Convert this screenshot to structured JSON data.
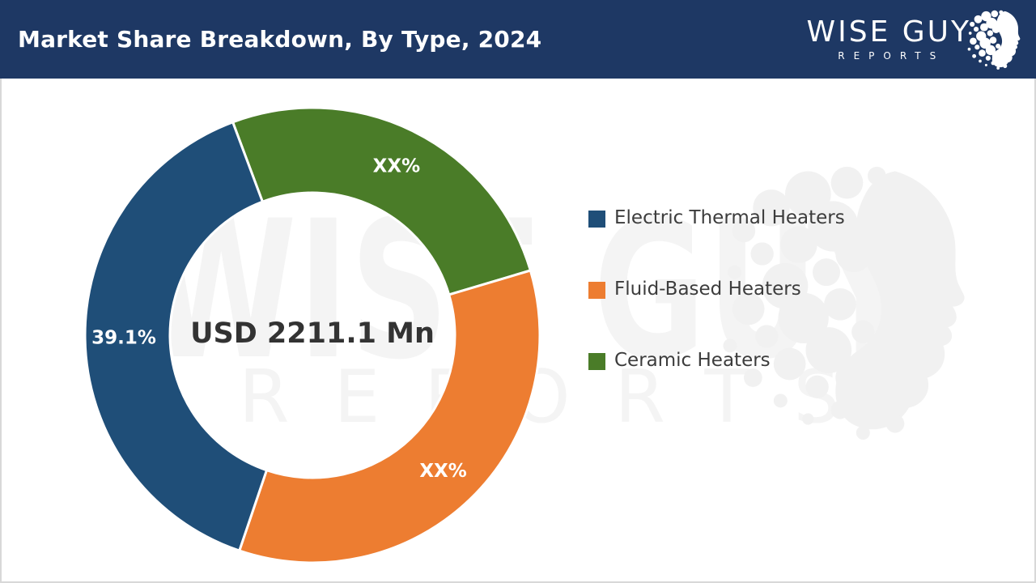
{
  "header": {
    "title": "Market Share Breakdown, By Type, 2024",
    "logo": {
      "line1": "WISE GUY",
      "line2": "REPORTS"
    }
  },
  "watermark": {
    "line1": "WISE GUY",
    "line2": "REPORTS"
  },
  "chart_data": {
    "type": "pie",
    "subtype": "donut",
    "title": "Market Share Breakdown, By Type, 2024",
    "center_label": "USD 2211.1 Mn",
    "legend_position": "right",
    "start_angle_deg_cw_from_top": -20.5,
    "segments": [
      {
        "name": "Electric Thermal Heaters",
        "value": 39.1,
        "label": "39.1%",
        "color": "#1f4e78"
      },
      {
        "name": "Fluid-Based Heaters",
        "value": 34.8,
        "label": "XX%",
        "color": "#ed7d31"
      },
      {
        "name": "Ceramic Heaters",
        "value": 26.1,
        "label": "XX%",
        "color": "#4a7c28"
      }
    ]
  },
  "colors": {
    "header_bg": "#1e3864",
    "center_text": "#333333",
    "legend_text": "#3c3c3c",
    "watermark": "#f4f4f4",
    "segment_divider": "#ffffff"
  }
}
